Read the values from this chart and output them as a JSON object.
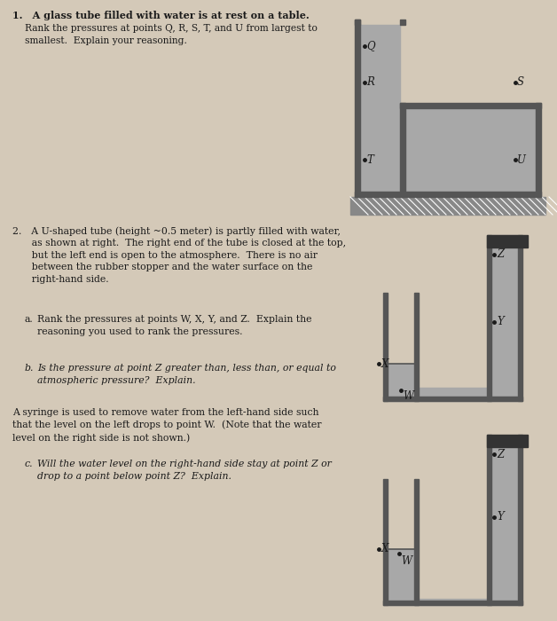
{
  "bg_color": "#d4c9b8",
  "text_color": "#1a1a1a",
  "water_color": "#a8a8a8",
  "tube_color": "#555555",
  "fig_width": 6.28,
  "fig_height": 7.0,
  "q1_title": "1. A glass tube filled with water is at rest on a table.",
  "q1_sub": "Rank the pressures at points Q, R, S, T, and U from largest to\nsmallest.  Explain your reasoning.",
  "q2_title": "2. A U-shaped tube (height ~0.5 meter) is partly filled with water,\n  as shown at right.  The right end of the tube is closed at the top,\n  but the left end is open to the atmosphere.  There is no air\n  between the rubber stopper and the water surface on the\n  right-hand side.",
  "q2a_label": "a.",
  "q2a_text": "Rank the pressures at points W, X, Y, and Z.  Explain the\nreasoning you used to rank the pressures.",
  "q2b_label": "b.",
  "q2b_text": "Is the pressure at point Z greater than, less than, or equal to\natmospheric pressure?  Explain.",
  "q3_intro": "A syringe is used to remove water from the left-hand side such\nthat the level on the left drops to point W.  (Note that the water\nlevel on the right side is not shown.)",
  "q3c_label": "c.",
  "q3c_text": "Will the water level on the right-hand side stay at point Z or\ndrop to a point below point Z?  Explain."
}
